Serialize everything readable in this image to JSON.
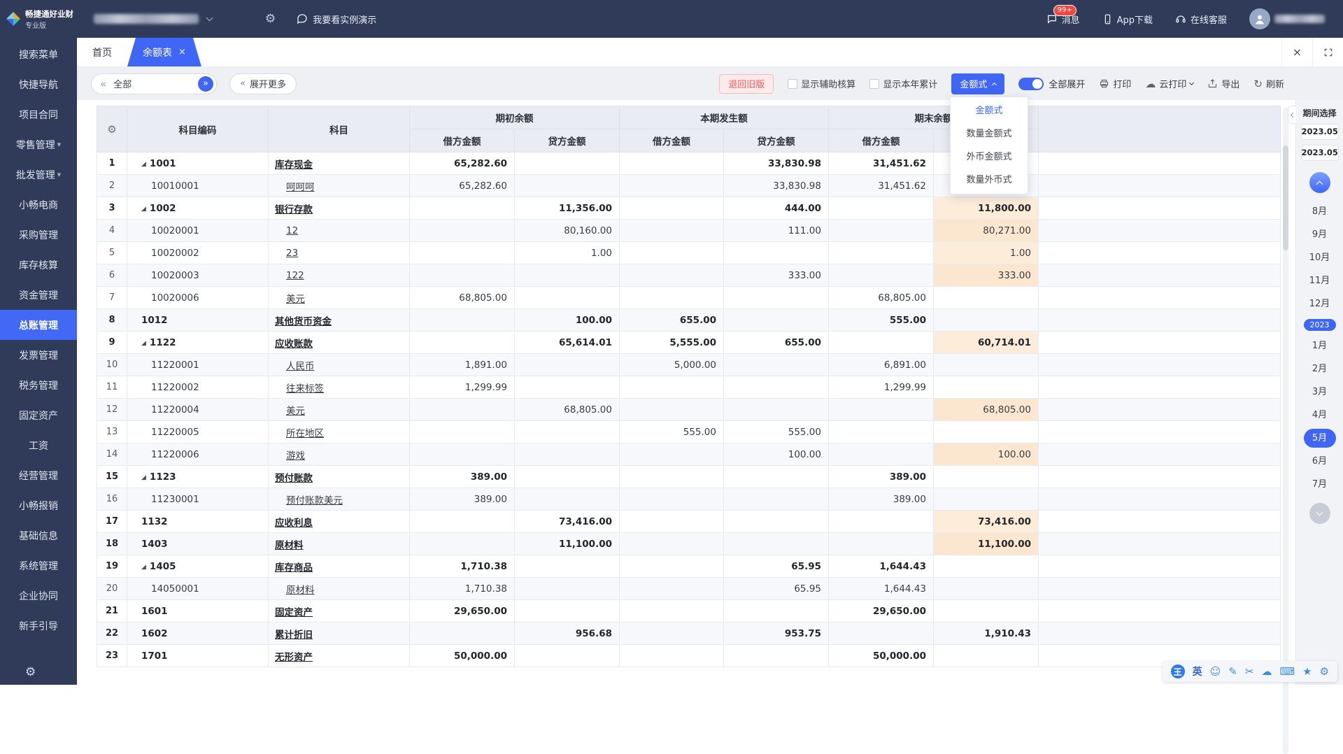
{
  "app": {
    "logo_line1": "畅捷通好业财",
    "logo_line2": "专业版"
  },
  "topbar": {
    "demo_text": "我要看实例演示",
    "messages": "消息",
    "messages_badge": "99+",
    "app_download": "App下载",
    "online_support": "在线客服"
  },
  "sidebar": {
    "items": [
      {
        "label": "搜索菜单"
      },
      {
        "label": "快捷导航"
      },
      {
        "label": "项目合同"
      },
      {
        "label": "零售管理",
        "arrow": true
      },
      {
        "label": "批发管理",
        "arrow": true
      },
      {
        "label": "小畅电商"
      },
      {
        "label": "采购管理"
      },
      {
        "label": "库存核算"
      },
      {
        "label": "资金管理"
      },
      {
        "label": "总账管理",
        "active": true
      },
      {
        "label": "发票管理"
      },
      {
        "label": "税务管理"
      },
      {
        "label": "固定资产"
      },
      {
        "label": "工资"
      },
      {
        "label": "经营管理"
      },
      {
        "label": "小畅报销"
      },
      {
        "label": "基础信息"
      },
      {
        "label": "系统管理"
      },
      {
        "label": "企业协同"
      },
      {
        "label": "新手引导"
      }
    ]
  },
  "tabs": {
    "home": "首页",
    "current": "余额表"
  },
  "toolbar": {
    "filter_all": "全部",
    "expand_more": "展开更多",
    "back_to_old": "退回旧版",
    "show_aux": "显示辅助核算",
    "show_ytd": "显示本年累计",
    "amount_style": "金额式",
    "expand_all": "全部展开",
    "print": "打印",
    "cloud_print": "云打印",
    "export": "导出",
    "refresh": "刷新"
  },
  "style_menu": {
    "items": [
      "金额式",
      "数量金额式",
      "外币金额式",
      "数量外币式"
    ],
    "selected": "金额式"
  },
  "period_panel": {
    "title": "期间选择",
    "period_from": "2023.05",
    "period_to": "2023.05",
    "year_badge": "2023",
    "months_top": [
      "8月",
      "9月",
      "10月",
      "11月",
      "12月"
    ],
    "months_bottom": [
      "1月",
      "2月",
      "3月",
      "4月",
      "5月",
      "6月",
      "7月"
    ],
    "active_month": "5月"
  },
  "table": {
    "groups": {
      "opening": "期初余额",
      "current": "本期发生额",
      "ending": "期末余额"
    },
    "headers": {
      "code": "科目编码",
      "name": "科目",
      "debit": "借方金额",
      "credit": "贷方金额"
    },
    "rows": [
      {
        "n": 1,
        "code": "1001",
        "name": "库存现金",
        "lvl": 1,
        "exp": true,
        "obd": "65,282.60",
        "cpc": "33,830.98",
        "ebd": "31,451.62"
      },
      {
        "n": 2,
        "code": "10010001",
        "name": "呵呵呵",
        "lvl": 2,
        "obd": "65,282.60",
        "cpc": "33,830.98",
        "ebd": "31,451.62"
      },
      {
        "n": 3,
        "code": "1002",
        "name": "银行存款",
        "lvl": 1,
        "exp": true,
        "obc": "11,356.00",
        "cpc": "444.00",
        "ebc": "11,800.00",
        "hl": true
      },
      {
        "n": 4,
        "code": "10020001",
        "name": "12",
        "lvl": 2,
        "obc": "80,160.00",
        "cpc": "111.00",
        "ebc": "80,271.00",
        "hl": true
      },
      {
        "n": 5,
        "code": "10020002",
        "name": "23",
        "lvl": 2,
        "obc": "1.00",
        "ebc": "1.00",
        "hl": true
      },
      {
        "n": 6,
        "code": "10020003",
        "name": "122",
        "lvl": 2,
        "cpc": "333.00",
        "ebc": "333.00",
        "hl": true
      },
      {
        "n": 7,
        "code": "10020006",
        "name": "美元",
        "lvl": 2,
        "obd": "68,805.00",
        "ebd": "68,805.00"
      },
      {
        "n": 8,
        "code": "1012",
        "name": "其他货币资金",
        "lvl": 1,
        "obc": "100.00",
        "cpd": "655.00",
        "ebd": "555.00"
      },
      {
        "n": 9,
        "code": "1122",
        "name": "应收账款",
        "lvl": 1,
        "exp": true,
        "obc": "65,614.01",
        "cpd": "5,555.00",
        "cpc": "655.00",
        "ebc": "60,714.01",
        "hl": true
      },
      {
        "n": 10,
        "code": "11220001",
        "name": "人民币",
        "lvl": 2,
        "obd": "1,891.00",
        "cpd": "5,000.00",
        "ebd": "6,891.00"
      },
      {
        "n": 11,
        "code": "11220002",
        "name": "往来标签",
        "lvl": 2,
        "obd": "1,299.99",
        "ebd": "1,299.99"
      },
      {
        "n": 12,
        "code": "11220004",
        "name": "美元",
        "lvl": 2,
        "obc": "68,805.00",
        "ebc": "68,805.00",
        "hl": true
      },
      {
        "n": 13,
        "code": "11220005",
        "name": "所在地区",
        "lvl": 2,
        "cpd": "555.00",
        "cpc": "555.00"
      },
      {
        "n": 14,
        "code": "11220006",
        "name": "游戏",
        "lvl": 2,
        "cpc": "100.00",
        "ebc": "100.00",
        "hl": true
      },
      {
        "n": 15,
        "code": "1123",
        "name": "预付账款",
        "lvl": 1,
        "exp": true,
        "obd": "389.00",
        "ebd": "389.00"
      },
      {
        "n": 16,
        "code": "11230001",
        "name": "预付账款美元",
        "lvl": 2,
        "obd": "389.00",
        "ebd": "389.00"
      },
      {
        "n": 17,
        "code": "1132",
        "name": "应收利息",
        "lvl": 1,
        "obc": "73,416.00",
        "ebc": "73,416.00",
        "hl": true
      },
      {
        "n": 18,
        "code": "1403",
        "name": "原材料",
        "lvl": 1,
        "obc": "11,100.00",
        "ebc": "11,100.00",
        "hl": true
      },
      {
        "n": 19,
        "code": "1405",
        "name": "库存商品",
        "lvl": 1,
        "exp": true,
        "obd": "1,710.38",
        "cpc": "65.95",
        "ebd": "1,644.43"
      },
      {
        "n": 20,
        "code": "14050001",
        "name": "原材料",
        "lvl": 2,
        "obd": "1,710.38",
        "cpc": "65.95",
        "ebd": "1,644.43"
      },
      {
        "n": 21,
        "code": "1601",
        "name": "固定资产",
        "lvl": 1,
        "obd": "29,650.00",
        "ebd": "29,650.00"
      },
      {
        "n": 22,
        "code": "1602",
        "name": "累计折旧",
        "lvl": 1,
        "obc": "956.68",
        "cpc": "953.75",
        "ebc": "1,910.43"
      },
      {
        "n": 23,
        "code": "1701",
        "name": "无形资产",
        "lvl": 1,
        "obd": "50,000.00",
        "ebd": "50,000.00"
      }
    ]
  },
  "ime_bar": {
    "logo": "王",
    "lang": "英"
  },
  "colors": {
    "accent": "#3f66f5",
    "sidebar_bg": "#2f3b58",
    "row_highlight": "#fcecd9",
    "danger_red": "#f25a5a",
    "badge_red": "#f5473f"
  }
}
